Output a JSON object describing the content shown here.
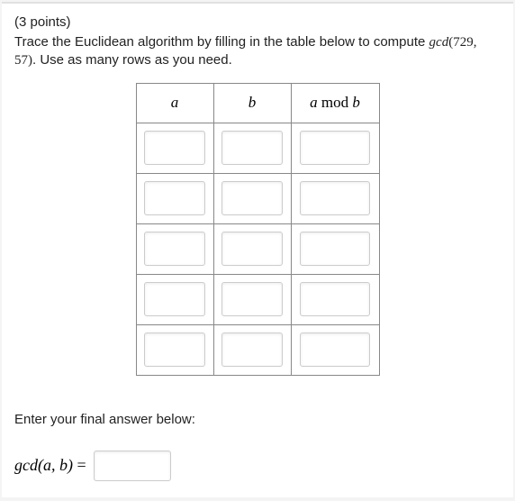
{
  "points": "(3 points)",
  "instruction_pre": "Trace the Euclidean algorithm by filling in the table below to compute ",
  "gcd_word": "gcd",
  "gcd_args": "(729, 57)",
  "instruction_post": ". Use as many rows as you need.",
  "table": {
    "headers": {
      "a": "a",
      "b": "b",
      "amodb_a": "a",
      "amodb_mid": " mod ",
      "amodb_b": "b"
    },
    "rows": 5
  },
  "final_label": "Enter your final answer below:",
  "final_expr": {
    "gcd": "gcd",
    "args": "(a, b)",
    "eq": " = "
  }
}
